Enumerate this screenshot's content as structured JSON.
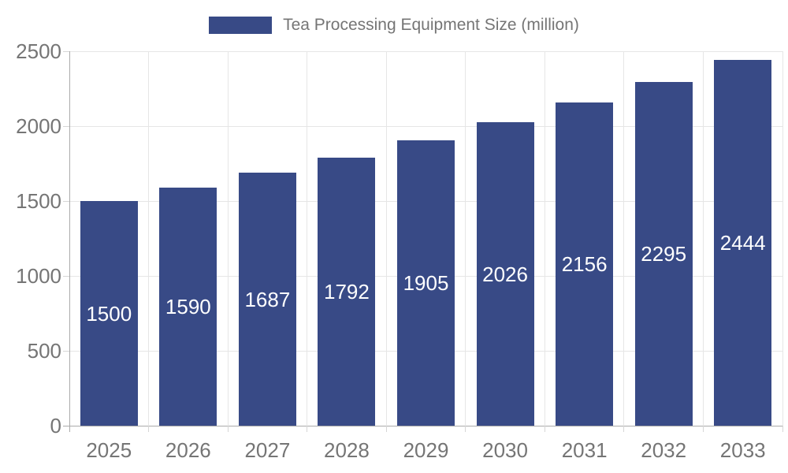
{
  "chart_data": {
    "type": "bar",
    "title": "Tea Processing Equipment Size (million)",
    "series_name": "Tea Processing Equipment Size (million)",
    "categories": [
      "2025",
      "2026",
      "2027",
      "2028",
      "2029",
      "2030",
      "2031",
      "2032",
      "2033"
    ],
    "values": [
      1500,
      1590,
      1687,
      1792,
      1905,
      2026,
      2156,
      2295,
      2444
    ],
    "xlabel": "",
    "ylabel": "",
    "ylim": [
      0,
      2500
    ],
    "yticks": [
      0,
      500,
      1000,
      1500,
      2000,
      2500
    ],
    "grid": true,
    "legend_position": "top-center",
    "legend_label": "Tea Processing Equipment Size (million)",
    "colors": {
      "bar": "#384A86",
      "value_label": "#ffffff",
      "axis_text": "#757575",
      "gridline": "#e6e6e6",
      "axis_line": "#ababab"
    }
  }
}
